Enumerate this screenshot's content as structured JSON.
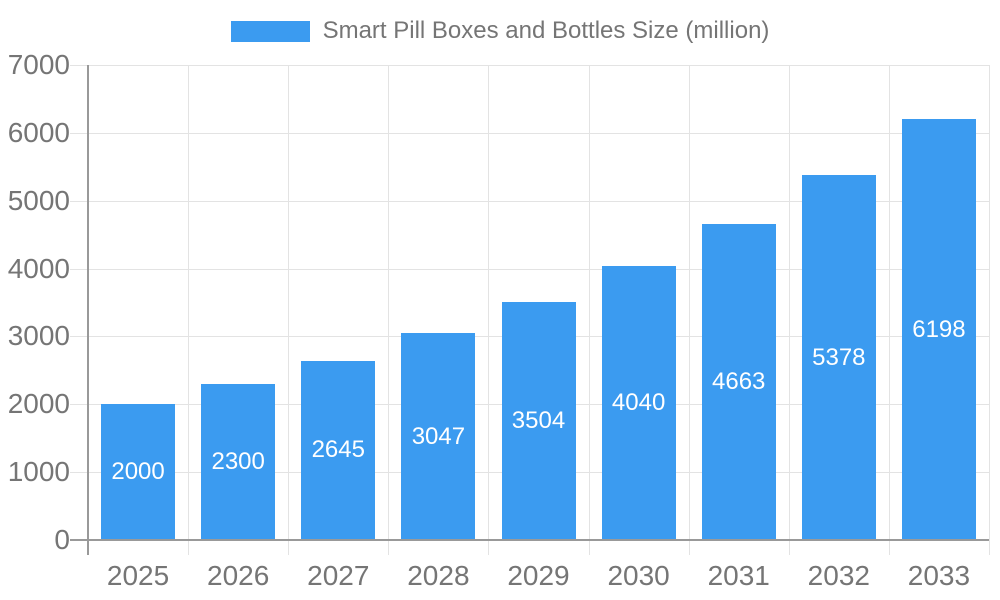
{
  "legend": {
    "label": "Smart Pill Boxes and Bottles Size (million)"
  },
  "chart_data": {
    "type": "bar",
    "title": "Smart Pill Boxes and Bottles Size (million)",
    "series": [
      {
        "name": "Smart Pill Boxes and Bottles Size (million)",
        "values": [
          2000,
          2300,
          2645,
          3047,
          3504,
          4040,
          4663,
          5378,
          6198
        ]
      }
    ],
    "categories": [
      "2025",
      "2026",
      "2027",
      "2028",
      "2029",
      "2030",
      "2031",
      "2032",
      "2033"
    ],
    "bar_labels": [
      "2000",
      "2300",
      "2645",
      "3047",
      "3504",
      "4040",
      "4663",
      "5378",
      "6198"
    ],
    "xlabel": "",
    "ylabel": "",
    "ylim": [
      0,
      7000
    ],
    "y_tick_step": 1000,
    "y_tick_labels": [
      "0",
      "1000",
      "2000",
      "3000",
      "4000",
      "5000",
      "6000",
      "7000"
    ],
    "grid": true,
    "legend_position": "top-center",
    "colors": {
      "bar": "#3B9BF0",
      "grid_line": "#E3E3E3",
      "axis_line": "#999999",
      "axis_text": "#757575",
      "bar_label_text": "#FFFFFF"
    }
  }
}
